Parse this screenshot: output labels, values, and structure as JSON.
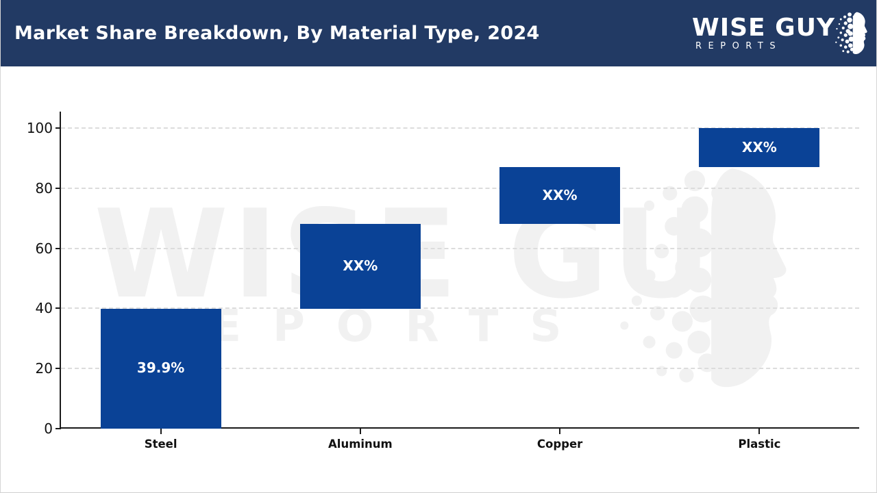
{
  "header": {
    "title": "Market Share Breakdown, By Material Type, 2024",
    "logo": {
      "line1": "WISE GUY",
      "line2": "REPORTS"
    }
  },
  "watermark": {
    "line1": "WISE GU",
    "line2": "REPORTS"
  },
  "colors": {
    "header_bg": "#223a64",
    "bar": "#0a4296",
    "watermark": "#f1f1f1",
    "grid": "#dcdcdc",
    "axis": "#1a1a1a"
  },
  "chart_data": {
    "type": "bar",
    "subtype": "waterfall",
    "title": "Market Share Breakdown, By Material Type, 2024",
    "categories": [
      "Steel",
      "Aluminum",
      "Copper",
      "Plastic"
    ],
    "bars": [
      {
        "category": "Steel",
        "start": 0,
        "end": 39.9,
        "label": "39.9%"
      },
      {
        "category": "Aluminum",
        "start": 39.9,
        "end": 68,
        "label": "XX%"
      },
      {
        "category": "Copper",
        "start": 68,
        "end": 87,
        "label": "XX%"
      },
      {
        "category": "Plastic",
        "start": 87,
        "end": 100,
        "label": "XX%"
      }
    ],
    "yticks": [
      0,
      20,
      40,
      60,
      80,
      100
    ],
    "ylim": [
      0,
      105.5
    ],
    "xlabel": "",
    "ylabel": "",
    "grid": "horizontal-dashed",
    "legend": "none"
  }
}
